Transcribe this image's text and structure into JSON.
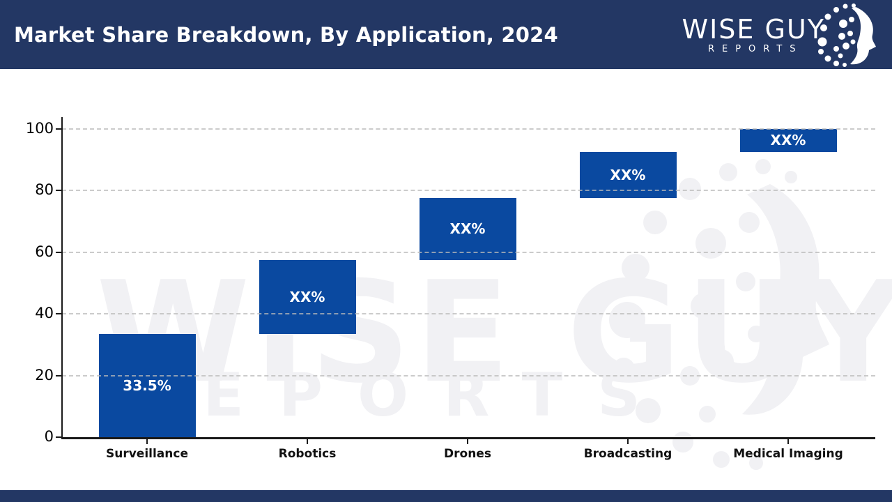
{
  "header": {
    "title": "Market Share Breakdown, By Application, 2024"
  },
  "logo": {
    "line1": "WISE GUY",
    "line2": "REPORTS"
  },
  "watermark": {
    "line1": "WISE GUY",
    "line2": "REPORTS"
  },
  "chart_data": {
    "type": "bar",
    "subtype": "waterfall",
    "title": "Market Share Breakdown, By Application, 2024",
    "xlabel": "",
    "ylabel": "",
    "categories": [
      "Surveillance",
      "Robotics",
      "Drones",
      "Broadcasting",
      "Medical Imaging"
    ],
    "segments": [
      {
        "category": "Surveillance",
        "start": 0,
        "end": 33.5,
        "label": "33.5%"
      },
      {
        "category": "Robotics",
        "start": 33.5,
        "end": 57.5,
        "label": "XX%"
      },
      {
        "category": "Drones",
        "start": 57.5,
        "end": 77.5,
        "label": "XX%"
      },
      {
        "category": "Broadcasting",
        "start": 77.5,
        "end": 92.5,
        "label": "XX%"
      },
      {
        "category": "Medical Imaging",
        "start": 92.5,
        "end": 100,
        "label": "XX%"
      }
    ],
    "ylim": [
      0,
      105
    ],
    "yticks": [
      0,
      20,
      40,
      60,
      80,
      100
    ],
    "grid": true,
    "grid_style": "dashed",
    "legend": "none",
    "bar_color": "#0A49A0",
    "bar_label_color": "#ffffff",
    "header_color": "#233764",
    "watermark_color": "#f1f1f4"
  }
}
